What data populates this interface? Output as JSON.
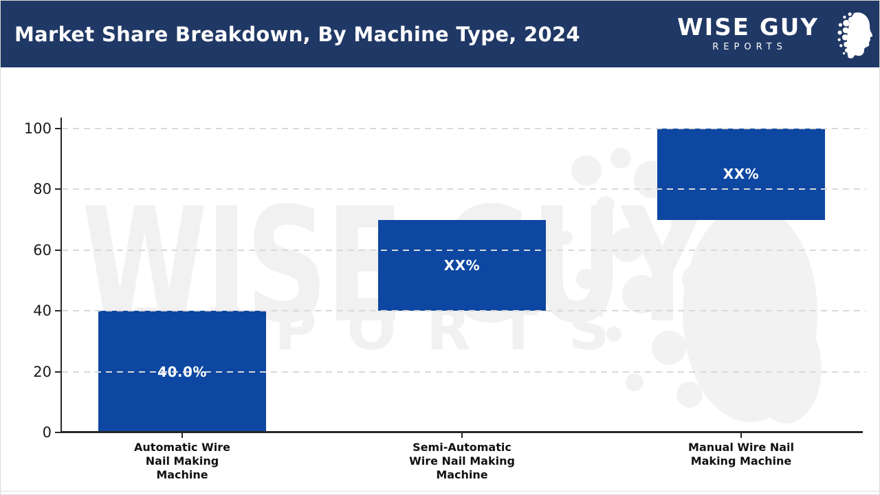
{
  "header": {
    "title": "Market Share Breakdown, By Machine Type, 2024",
    "logo": {
      "name": "WISE GUY",
      "sub": "REPORTS"
    }
  },
  "watermark": {
    "line1": "WISE GUY",
    "line2": "REPORTS"
  },
  "chart_data": {
    "type": "bar",
    "subtype": "waterfall",
    "title": "Market Share Breakdown, By Machine Type, 2024",
    "categories": [
      "Automatic Wire Nail Making Machine",
      "Semi-Automatic Wire Nail Making Machine",
      "Manual Wire Nail Making Machine"
    ],
    "bars": [
      {
        "category": "Automatic Wire Nail Making Machine",
        "category_lines": [
          "Automatic Wire",
          "Nail Making",
          "Machine"
        ],
        "start": 0,
        "end": 40,
        "value": 40,
        "label": "40.0%"
      },
      {
        "category": "Semi-Automatic Wire Nail Making Machine",
        "category_lines": [
          "Semi-Automatic",
          "Wire Nail Making",
          "Machine"
        ],
        "start": 40,
        "end": 70,
        "value": 30,
        "label": "XX%"
      },
      {
        "category": "Manual Wire Nail Making Machine",
        "category_lines": [
          "Manual Wire Nail",
          "Making Machine"
        ],
        "start": 70,
        "end": 100,
        "value": 30,
        "label": "XX%"
      }
    ],
    "y_ticks": [
      0,
      20,
      40,
      60,
      80,
      100
    ],
    "ylim": [
      0,
      103.5
    ],
    "xlabel": "",
    "ylabel": "",
    "legend": null,
    "grid": "horizontal-dashed",
    "grid_on_top": true,
    "bar_color": "#0d47a1",
    "bar_label_color": "#ffffff"
  },
  "colors": {
    "header_bg": "#203865",
    "bar": "#0d47a1",
    "axis": "#262626",
    "grid": "#d9d9d9",
    "text": "#111111",
    "watermark": "#f1f1f2",
    "border": "#dcdcdc"
  }
}
